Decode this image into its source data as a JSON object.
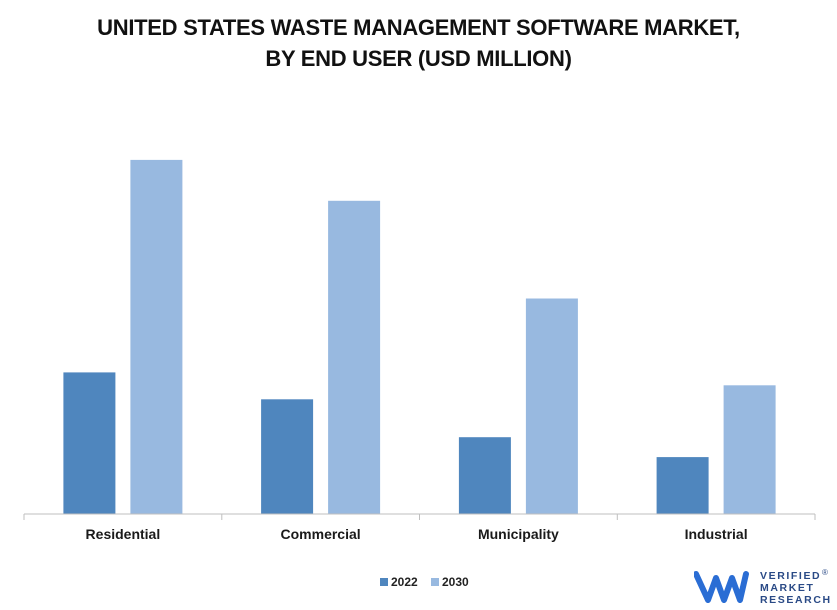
{
  "chart_data": {
    "type": "bar",
    "title_lines": [
      "UNITED STATES WASTE MANAGEMENT SOFTWARE MARKET,",
      "BY END USER (USD MILLION)"
    ],
    "categories": [
      "Residential",
      "Commercial",
      "Municipality",
      "Industrial"
    ],
    "series": [
      {
        "name": "2022",
        "color": "#4f86be",
        "values": [
          142,
          115,
          77,
          57
        ]
      },
      {
        "name": "2030",
        "color": "#98b9e0",
        "values": [
          355,
          314,
          216,
          129
        ]
      }
    ],
    "ylim": [
      0,
      400
    ],
    "grid": false,
    "legend": "bottom-center"
  },
  "logo": {
    "lines": [
      "VERIFIED",
      "MARKET",
      "RESEARCH"
    ],
    "registered": "®",
    "color": "#2a4a86",
    "mark_color": "#2a6dd4"
  }
}
